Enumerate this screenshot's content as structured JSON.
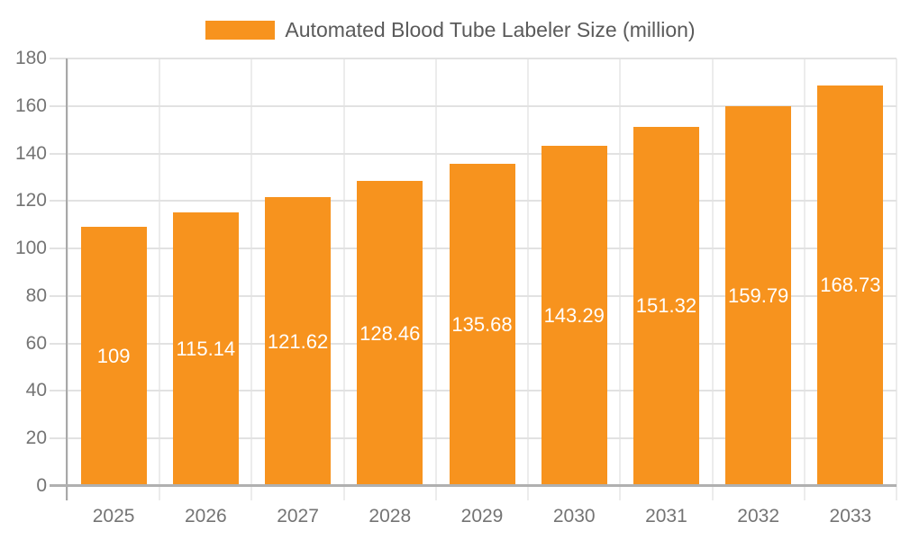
{
  "legend": {
    "label": "Automated Blood Tube Labeler Size (million)"
  },
  "chart_data": {
    "type": "bar",
    "title": "Automated Blood Tube Labeler Size (million)",
    "series_name": "Automated Blood Tube Labeler Size (million)",
    "categories": [
      "2025",
      "2026",
      "2027",
      "2028",
      "2029",
      "2030",
      "2031",
      "2032",
      "2033"
    ],
    "values": [
      109,
      115.14,
      121.62,
      128.46,
      135.68,
      143.29,
      151.32,
      159.79,
      168.73
    ],
    "value_labels": [
      "109",
      "115.14",
      "121.62",
      "128.46",
      "135.68",
      "143.29",
      "151.32",
      "159.79",
      "168.73"
    ],
    "ylim": [
      0,
      180
    ],
    "ytick_step": 20,
    "ytick_labels": [
      "0",
      "20",
      "40",
      "60",
      "80",
      "100",
      "120",
      "140",
      "160",
      "180"
    ],
    "xlabel": "",
    "ylabel": "",
    "grid": true,
    "legend_position": "top",
    "colors": {
      "bar": "#f7931e",
      "value_label": "#ffffff",
      "axis_text": "#747474",
      "legend_text": "#5a5a5a",
      "hgrid": "#e2e2e2",
      "vgrid": "#ececec",
      "y_axis_line": "#a8a8a8",
      "x_axis_line": "#b0b0b0"
    }
  }
}
